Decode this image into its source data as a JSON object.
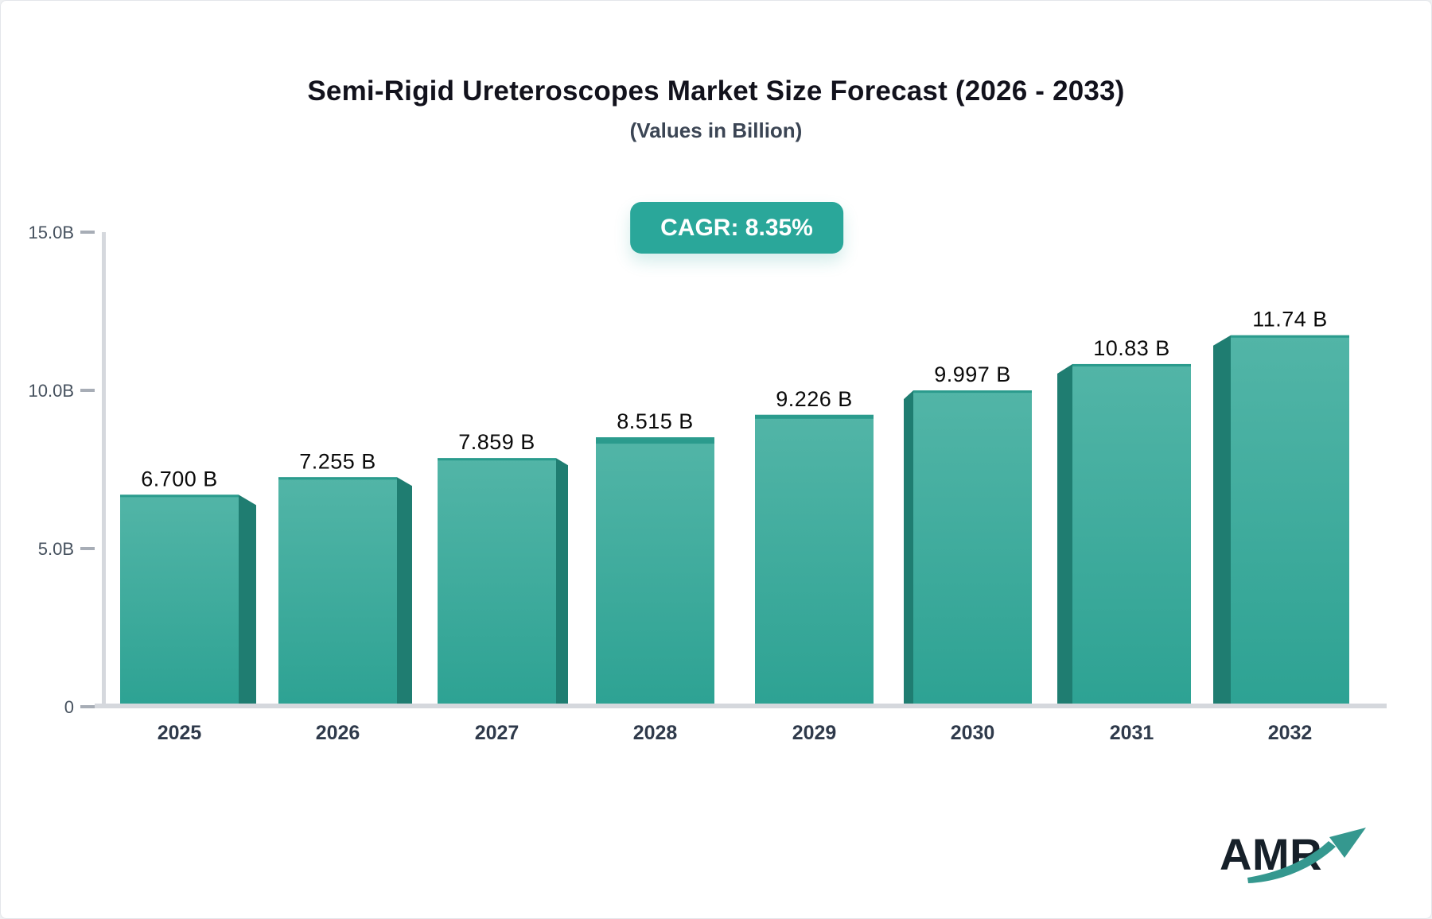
{
  "chart_data": {
    "type": "bar",
    "title": "Semi-Rigid Ureteroscopes Market Size Forecast (2026 - 2033)",
    "subtitle": "(Values in Billion)",
    "badge_label": "CAGR: 8.35%",
    "categories": [
      "2025",
      "2026",
      "2027",
      "2028",
      "2029",
      "2030",
      "2031",
      "2032"
    ],
    "values": [
      6.7,
      7.255,
      7.859,
      8.515,
      9.226,
      9.997,
      10.83,
      11.74
    ],
    "value_labels": [
      "6.700 B",
      "7.255 B",
      "7.859 B",
      "8.515 B",
      "9.226 B",
      "9.997 B",
      "10.83 B",
      "11.74 B"
    ],
    "y_ticks": [
      {
        "label": "15.0B",
        "value": 15
      },
      {
        "label": "10.0B",
        "value": 10
      },
      {
        "label": "5.0B",
        "value": 5
      },
      {
        "label": "0",
        "value": 0
      }
    ],
    "ylim": [
      0,
      15
    ],
    "unit": "Billion",
    "grid": false,
    "legend": false,
    "colors": {
      "bar_top": "#52b5a7",
      "bar_bottom": "#2da293",
      "bar_side": "#1f7d71",
      "bar_cap": "#2b9b8d",
      "badge_bg": "#2aa79a",
      "axis_line": "#d5d8dd",
      "tick_dash": "#a7adb6",
      "tick_label": "#47525f",
      "category_label": "#2f3a4b",
      "value_label": "#0a0a0a",
      "logo_text": "#162029",
      "logo_arrow": "#35988f"
    }
  },
  "footer": {
    "logo_text": "AMR"
  }
}
